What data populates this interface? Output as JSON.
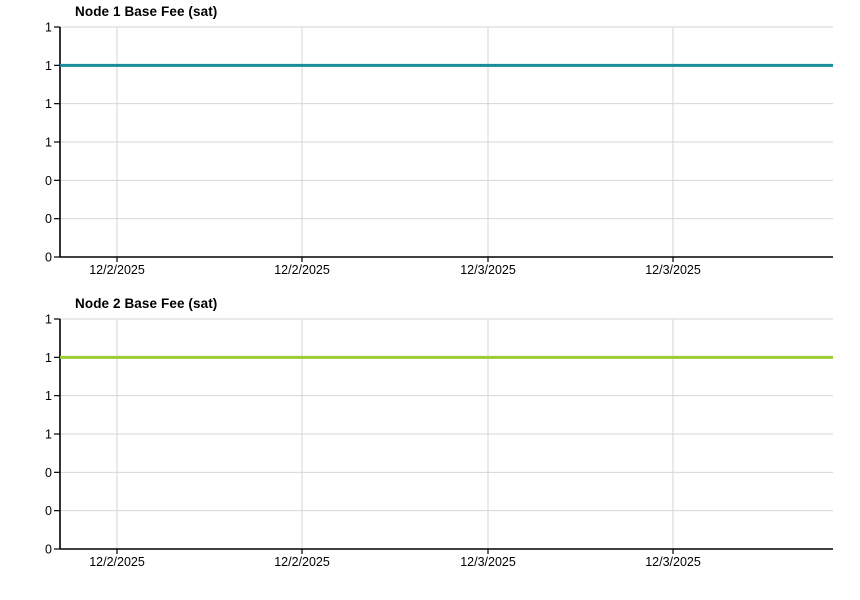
{
  "page": {
    "background": "#ffffff"
  },
  "chart_data": [
    {
      "type": "line",
      "title": "Node 1 Base Fee (sat)",
      "xlabel": "",
      "ylabel": "",
      "ylim": [
        0,
        1.2
      ],
      "y_ticks": [
        1.2,
        1.0,
        0.8,
        0.6,
        0.4,
        0.2,
        0
      ],
      "y_tick_labels": [
        "1",
        "1",
        "1",
        "1",
        "0",
        "0",
        "0"
      ],
      "x_tick_labels": [
        "12/2/2025",
        "12/2/2025",
        "12/3/2025",
        "12/3/2025"
      ],
      "grid": true,
      "legend_position": "none",
      "series": [
        {
          "name": "Node 1 base fee",
          "color": "#1A8C99",
          "shape": "constant-horizontal-line",
          "value": 1.0
        }
      ]
    },
    {
      "type": "line",
      "title": "Node 2 Base Fee (sat)",
      "xlabel": "",
      "ylabel": "",
      "ylim": [
        0,
        1.2
      ],
      "y_ticks": [
        1.2,
        1.0,
        0.8,
        0.6,
        0.4,
        0.2,
        0
      ],
      "y_tick_labels": [
        "1",
        "1",
        "1",
        "1",
        "0",
        "0",
        "0"
      ],
      "x_tick_labels": [
        "12/2/2025",
        "12/2/2025",
        "12/3/2025",
        "12/3/2025"
      ],
      "grid": true,
      "legend_position": "none",
      "series": [
        {
          "name": "Node 2 base fee",
          "color": "#9ACD32",
          "shape": "constant-horizontal-line",
          "value": 1.0
        }
      ]
    }
  ],
  "style": {
    "gridline_color": "#d6d6d6",
    "axis_color": "#000000",
    "tick_label_color": "#000000"
  }
}
